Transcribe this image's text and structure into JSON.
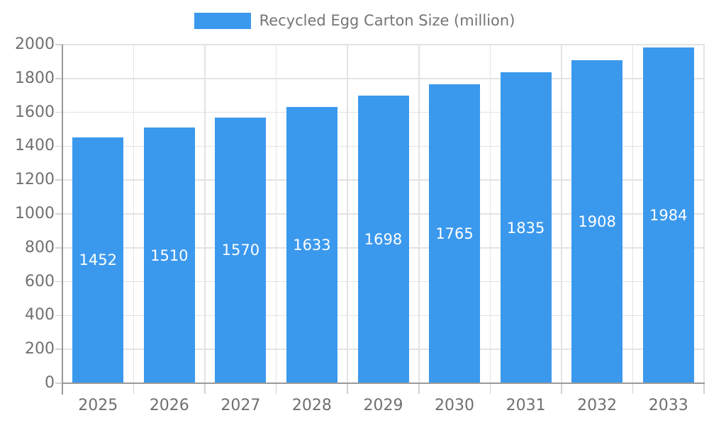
{
  "legend": {
    "label": "Recycled Egg Carton Size (million)"
  },
  "chart_data": {
    "type": "bar",
    "title": "",
    "categories": [
      "2025",
      "2026",
      "2027",
      "2028",
      "2029",
      "2030",
      "2031",
      "2032",
      "2033"
    ],
    "series": [
      {
        "name": "Recycled Egg Carton Size (million)",
        "values": [
          1452,
          1510,
          1570,
          1633,
          1698,
          1765,
          1835,
          1908,
          1984
        ]
      }
    ],
    "bar_value_labels": [
      "1452",
      "1510",
      "1570",
      "1633",
      "1698",
      "1765",
      "1835",
      "1908",
      "1984"
    ],
    "xlabel": "",
    "ylabel": "",
    "ylim": [
      0,
      2000
    ],
    "yticks": [
      0,
      200,
      400,
      600,
      800,
      1000,
      1200,
      1400,
      1600,
      1800,
      2000
    ],
    "grid": true,
    "legend_position": "top-center",
    "colors": {
      "bar": "#3B99ED",
      "grid": "#E3E3E3",
      "tick": "#D2D2D2",
      "axis": "#999999",
      "axis_label_text": "#707070",
      "bar_label_text": "#FFFFFF",
      "legend_text": "#757575",
      "background": "#FFFFFF"
    }
  }
}
